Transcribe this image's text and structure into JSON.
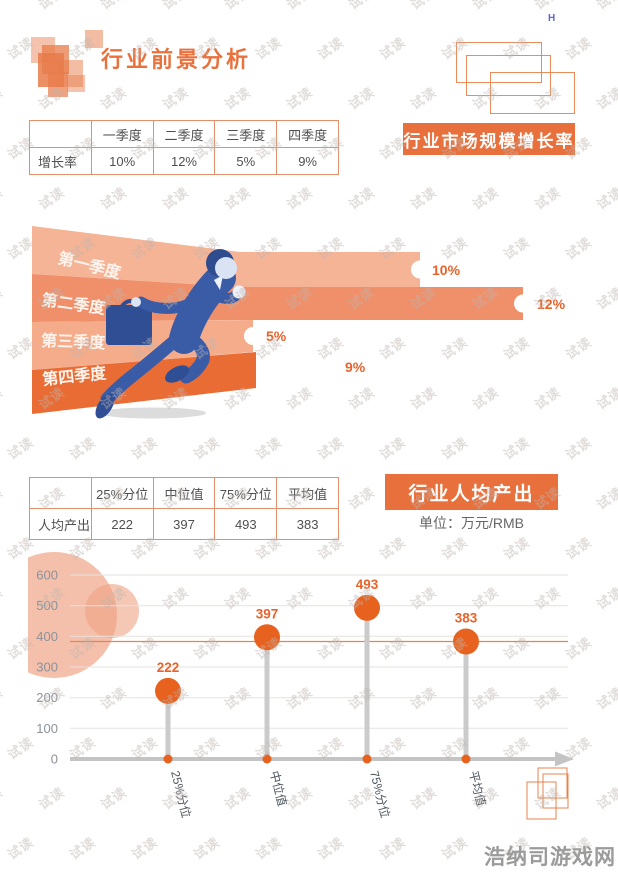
{
  "page": {
    "corner_letter": "H",
    "watermark_text": "试读",
    "site_watermark": "浩纳司游戏网"
  },
  "title": "行业前景分析",
  "growth_section": {
    "banner": "行业市场规模增长率",
    "table": {
      "row_header": "增长率",
      "columns": [
        "一季度",
        "二季度",
        "三季度",
        "四季度"
      ],
      "values": [
        "10%",
        "12%",
        "5%",
        "9%"
      ]
    },
    "funnel": {
      "labels": [
        "第一季度",
        "第二季度",
        "第三季度",
        "第四季度"
      ],
      "bar_values": [
        "10%",
        "12%",
        "5%",
        "9%"
      ]
    }
  },
  "output_section": {
    "banner": "行业人均产出",
    "unit": "单位：万元/RMB",
    "table": {
      "row_header": "人均产出",
      "columns": [
        "25%分位",
        "中位值",
        "75%分位",
        "平均值"
      ],
      "values": [
        "222",
        "397",
        "493",
        "383"
      ]
    }
  },
  "chart_data": {
    "type": "scatter",
    "style": "lollipop",
    "title": "行业人均产出",
    "unit": "万元/RMB",
    "categories": [
      "25%分位",
      "中位值",
      "75%分位",
      "平均值"
    ],
    "values": [
      222,
      397,
      493,
      383
    ],
    "reference_line": 383,
    "yticks": [
      600,
      500,
      400,
      300,
      200,
      100,
      0
    ],
    "ylim": [
      0,
      600
    ],
    "grid": true,
    "legend": "none"
  },
  "colors": {
    "accent": "#E8703C",
    "banner_bg": "#E8703C",
    "title_text": "#E8713D",
    "band_colors": [
      "#F6B497",
      "#F0906A",
      "#F5AC8B",
      "#E96C35"
    ],
    "percent_label": "#E8622A",
    "lollipop": "#E8621F",
    "reference_line": "#E8824E",
    "stem_gray": "#CBCBCB",
    "axis_gray": "#C4C4C4",
    "runner_blue": "#3A5BA6",
    "runner_dark_blue": "#2F4E94",
    "corner_letter_blue": "#5C67D6",
    "site_watermark_gray": "#9B9B9B"
  }
}
